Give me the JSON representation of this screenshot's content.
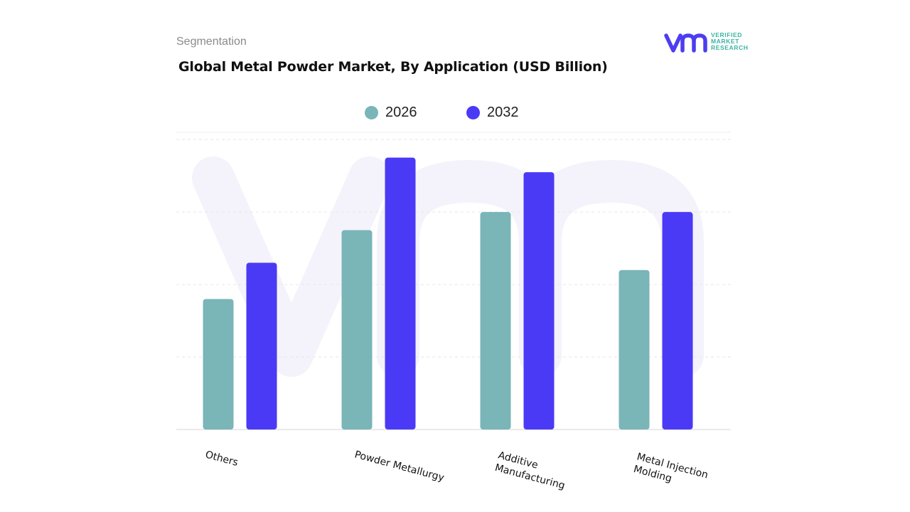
{
  "header": {
    "segment_label": "Segmentation",
    "title": "Global Metal Powder Market, By Application (USD Billion)"
  },
  "logo": {
    "icon": "vmr-logo-icon",
    "lines": [
      "VERIFIED",
      "MARKET",
      "RESEARCH"
    ],
    "color_primary": "#4c3df2",
    "color_secondary": "#3bb3a5"
  },
  "chart_data": {
    "type": "bar",
    "title": "Global Metal Powder Market, By Application (USD Billion)",
    "xlabel": "",
    "ylabel": "",
    "categories": [
      "Others",
      "Powder Metallurgy",
      "Additive Manufacturing",
      "Metal Injection Molding"
    ],
    "category_label_lines": [
      [
        "Others"
      ],
      [
        "Powder Metallurgy"
      ],
      [
        "Additive",
        "Manufacturing"
      ],
      [
        "Metal Injection",
        "Molding"
      ]
    ],
    "series": [
      {
        "name": "2026",
        "color": "#7ab5b8",
        "values": [
          1.8,
          2.75,
          3.0,
          2.2
        ]
      },
      {
        "name": "2032",
        "color": "#4b3af5",
        "values": [
          2.3,
          3.75,
          3.55,
          3.0
        ]
      }
    ],
    "ylim": [
      0,
      4.1
    ],
    "grid": true,
    "tick_labels_visible": false,
    "legend_position": "top-center",
    "watermark": "vmr"
  }
}
